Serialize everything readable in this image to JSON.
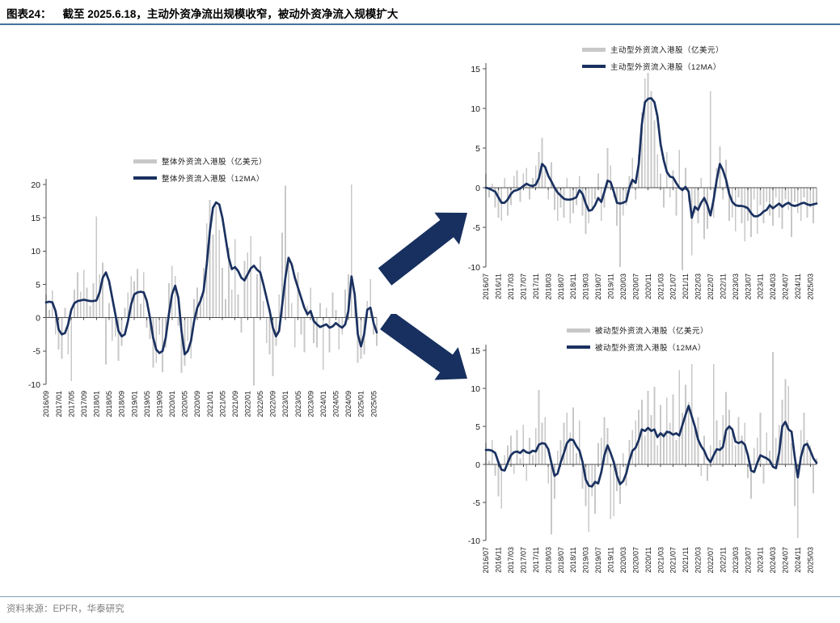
{
  "header": {
    "figure_label": "图表24：",
    "title": "截至 2025.6.18，主动外资净流出规模收窄，被动外资净流入规模扩大"
  },
  "footer": {
    "source": "资料来源：EPFR，华泰研究"
  },
  "colors": {
    "bar": "#c8c8c8",
    "line": "#1a3160",
    "arrow": "#17305f",
    "axis": "#4d4d4d",
    "tick_text": "#1a1a1a",
    "title_rule": "#45729e",
    "footer_rule": "#7da0b8",
    "source_text": "#7f7f7f"
  },
  "chart_data": [
    {
      "type": "bar",
      "overlay": "line",
      "name": "overall-foreign-inflow-hk",
      "legend": {
        "bars": "整体外资流入港股（亿美元）",
        "ma": "整体外资流入港股（12MA）"
      },
      "ylim": [
        -10,
        20
      ],
      "yticks": [
        20,
        15,
        10,
        5,
        0,
        -5,
        -10
      ],
      "label_every": 4,
      "x_labels": [
        "2016/09",
        "2017/01",
        "2017/05",
        "2017/09",
        "2018/01",
        "2018/05",
        "2018/09",
        "2019/01",
        "2019/05",
        "2019/09",
        "2020/01",
        "2020/05",
        "2020/09",
        "2021/01",
        "2021/05",
        "2021/09",
        "2022/01",
        "2022/05",
        "2022/09",
        "2023/01",
        "2023/05",
        "2023/09",
        "2024/01",
        "2024/05",
        "2024/09",
        "2025/01",
        "2025/05"
      ],
      "bars": [
        3.5,
        1.2,
        4.1,
        -2.5,
        -4.8,
        -6.2,
        1.5,
        -5.5,
        -9.5,
        4.2,
        6.8,
        3.9,
        7.2,
        4.5,
        1.8,
        5.2,
        15.2,
        6.5,
        8.3,
        -7.0,
        2.2,
        -3.5,
        -2.8,
        -6.5,
        -4.2,
        1.5,
        3.8,
        6.2,
        5.5,
        7.3,
        2.1,
        6.8,
        -1.5,
        -3.2,
        -7.5,
        -6.8,
        -2.5,
        -8.2,
        -4.5,
        5.2,
        7.8,
        6.3,
        -1.2,
        -8.3,
        -7.2,
        -3.5,
        -6.1,
        2.8,
        4.5,
        3.2,
        7.5,
        14.2,
        17.7,
        12.5,
        16.8,
        13.2,
        7.5,
        2.8,
        10.5,
        4.2,
        11.8,
        3.5,
        -2.2,
        8.5,
        9.8,
        12.2,
        -10.2,
        6.5,
        9.2,
        2.5,
        -3.8,
        -5.5,
        -8.8,
        -4.2,
        3.5,
        12.8,
        19.8,
        8.5,
        2.2,
        -4.5,
        6.8,
        -2.5,
        -5.2,
        1.8,
        4.5,
        -3.8,
        -4.5,
        2.2,
        -7.8,
        1.5,
        -5.2,
        3.8,
        1.2,
        -4.8,
        -2.5,
        4.2,
        6.5,
        20.0,
        3.5,
        -6.8,
        -6.2,
        -5.5,
        2.5,
        5.8,
        -2.5,
        -4.2
      ],
      "ma": [
        2.3,
        2.4,
        2.3,
        1.0,
        -1.8,
        -2.5,
        -2.3,
        -1.0,
        1.2,
        2.2,
        2.5,
        2.6,
        2.7,
        2.6,
        2.5,
        2.5,
        2.6,
        3.8,
        6.0,
        6.8,
        5.5,
        3.0,
        0.5,
        -2.0,
        -2.8,
        -2.5,
        -0.5,
        2.0,
        3.5,
        3.8,
        3.9,
        3.8,
        2.5,
        0.0,
        -3.0,
        -4.8,
        -5.3,
        -5.0,
        -3.0,
        0.5,
        3.5,
        4.8,
        3.0,
        -2.0,
        -5.5,
        -5.0,
        -3.5,
        -0.5,
        1.5,
        2.5,
        4.0,
        8.0,
        13.0,
        16.5,
        17.3,
        17.0,
        15.0,
        12.0,
        9.0,
        7.3,
        7.6,
        7.0,
        6.0,
        5.6,
        6.5,
        7.4,
        7.8,
        7.2,
        6.8,
        5.0,
        3.0,
        1.0,
        -1.5,
        -2.8,
        -2.0,
        2.0,
        6.0,
        9.0,
        8.0,
        6.0,
        4.5,
        3.0,
        1.5,
        0.5,
        1.0,
        -0.5,
        -1.0,
        -1.4,
        -1.2,
        -1.0,
        -1.5,
        -1.3,
        -0.8,
        -1.2,
        -1.5,
        -1.0,
        1.0,
        6.2,
        3.5,
        -2.5,
        -4.3,
        -2.5,
        1.2,
        1.5,
        -0.8,
        -2.2
      ]
    },
    {
      "type": "bar",
      "overlay": "line",
      "name": "active-foreign-inflow-hk",
      "legend": {
        "bars": "主动型外资流入港股（亿美元）",
        "ma": "主动型外资流入港股（12MA）"
      },
      "ylim": [
        -10,
        15
      ],
      "yticks": [
        15,
        10,
        5,
        0,
        -5,
        -10
      ],
      "label_every": 4,
      "x_labels": [
        "2016/07",
        "2016/11",
        "2017/03",
        "2017/07",
        "2017/11",
        "2018/03",
        "2018/07",
        "2018/11",
        "2019/03",
        "2019/07",
        "2019/11",
        "2020/03",
        "2020/07",
        "2020/11",
        "2021/03",
        "2021/07",
        "2021/11",
        "2022/03",
        "2022/07",
        "2022/11",
        "2023/03",
        "2023/07",
        "2023/11",
        "2024/03",
        "2024/07",
        "2024/11",
        "2025/03"
      ],
      "bars": [
        1.8,
        -1.2,
        0.5,
        -2.5,
        -3.8,
        -4.2,
        1.2,
        -3.5,
        -2.2,
        1.5,
        2.2,
        -1.8,
        1.8,
        2.5,
        -1.5,
        1.2,
        2.8,
        4.5,
        6.3,
        2.5,
        -1.5,
        3.2,
        -2.8,
        -4.2,
        -2.5,
        -3.8,
        1.2,
        -4.5,
        -3.2,
        -2.2,
        1.5,
        -3.5,
        -5.8,
        -4.5,
        -2.8,
        -1.5,
        1.8,
        -4.2,
        -2.5,
        5.0,
        2.8,
        -1.2,
        -4.8,
        -10.0,
        -3.5,
        -2.2,
        1.5,
        3.8,
        -1.5,
        4.2,
        9.5,
        13.8,
        14.5,
        12.2,
        8.5,
        4.2,
        1.8,
        -2.5,
        4.5,
        -1.2,
        2.2,
        -3.5,
        4.8,
        -10.4,
        2.5,
        -1.8,
        -8.5,
        -3.2,
        -4.5,
        1.2,
        -6.5,
        -5.2,
        12.2,
        -3.8,
        2.5,
        5.2,
        -1.5,
        3.5,
        -4.2,
        -3.8,
        -5.5,
        -1.2,
        -4.5,
        -6.8,
        -4.2,
        -6.2,
        -1.5,
        -5.8,
        -2.2,
        -4.5,
        -1.8,
        -3.5,
        -4.8,
        -1.2,
        -3.8,
        -5.2,
        -1.5,
        -2.8,
        -6.2,
        -1.8,
        -3.2,
        -4.2,
        -1.2,
        -3.8,
        -2.5,
        -4.5,
        -2.0
      ],
      "ma": [
        0.0,
        -0.1,
        -0.3,
        -0.5,
        -1.2,
        -1.9,
        -1.9,
        -1.5,
        -0.8,
        -0.4,
        -0.3,
        -0.1,
        0.2,
        0.5,
        0.3,
        0.2,
        0.4,
        1.2,
        3.0,
        2.6,
        1.5,
        0.8,
        0.0,
        -0.6,
        -1.0,
        -1.4,
        -1.5,
        -1.5,
        -1.4,
        -1.2,
        -0.3,
        -0.8,
        -2.0,
        -2.9,
        -2.8,
        -2.2,
        -1.3,
        -1.8,
        -0.5,
        0.9,
        0.7,
        -0.5,
        -1.9,
        -2.0,
        -1.9,
        -1.7,
        0.0,
        1.0,
        0.6,
        3.0,
        8.0,
        10.8,
        11.2,
        11.3,
        10.8,
        9.0,
        5.5,
        3.5,
        2.0,
        1.4,
        1.3,
        0.6,
        0.0,
        -0.3,
        0.1,
        -0.5,
        -3.8,
        -2.4,
        -2.8,
        -1.9,
        -1.3,
        -2.2,
        -3.5,
        -1.5,
        1.0,
        3.0,
        2.2,
        1.0,
        -0.8,
        -1.8,
        -2.2,
        -2.3,
        -2.3,
        -2.4,
        -2.6,
        -3.2,
        -3.6,
        -3.6,
        -3.4,
        -3.0,
        -2.8,
        -2.2,
        -2.6,
        -2.3,
        -2.0,
        -2.4,
        -2.1,
        -1.9,
        -2.2,
        -2.3,
        -2.2,
        -2.0,
        -1.9,
        -2.1,
        -2.2,
        -2.1,
        -2.0
      ]
    },
    {
      "type": "bar",
      "overlay": "line",
      "name": "passive-foreign-inflow-hk",
      "legend": {
        "bars": "被动型外资流入港股（亿美元）",
        "ma": "被动型外资流入港股（12MA）"
      },
      "ylim": [
        -10,
        15
      ],
      "yticks": [
        15,
        10,
        5,
        0,
        -5,
        -10
      ],
      "label_every": 4,
      "x_labels": [
        "2016/07",
        "2016/11",
        "2017/03",
        "2017/07",
        "2017/11",
        "2018/03",
        "2018/07",
        "2018/11",
        "2019/03",
        "2019/07",
        "2019/11",
        "2020/03",
        "2020/07",
        "2020/11",
        "2021/03",
        "2021/07",
        "2021/11",
        "2022/03",
        "2022/07",
        "2022/11",
        "2023/03",
        "2023/07",
        "2023/11",
        "2024/03",
        "2024/07",
        "2024/11",
        "2025/03"
      ],
      "bars": [
        2.8,
        0.5,
        3.2,
        -1.5,
        -4.2,
        -5.8,
        1.2,
        2.5,
        3.8,
        -1.2,
        4.5,
        0.8,
        5.2,
        -2.2,
        3.5,
        1.2,
        4.8,
        9.8,
        5.5,
        6.2,
        -2.5,
        -9.2,
        -4.5,
        1.8,
        3.2,
        5.5,
        6.8,
        4.2,
        7.5,
        1.5,
        5.8,
        -3.2,
        -5.5,
        -8.9,
        -4.2,
        -6.5,
        2.8,
        3.5,
        6.2,
        4.8,
        -7.2,
        -6.8,
        -3.5,
        -5.2,
        1.5,
        -2.8,
        3.2,
        4.5,
        5.8,
        7.2,
        8.5,
        3.8,
        9.7,
        6.5,
        10.2,
        2.5,
        7.8,
        4.2,
        8.8,
        5.5,
        9.2,
        3.2,
        12.4,
        6.8,
        10.5,
        8.2,
        13.2,
        4.5,
        6.2,
        -1.5,
        3.8,
        -2.2,
        2.5,
        13.2,
        5.8,
        3.2,
        6.5,
        9.5,
        7.2,
        4.8,
        2.5,
        6.2,
        3.8,
        5.5,
        -1.8,
        -4.5,
        2.2,
        3.5,
        6.8,
        -2.5,
        4.2,
        1.8,
        14.8,
        3.5,
        5.2,
        8.5,
        11.2,
        10.3,
        2.8,
        -5.5,
        -9.7,
        4.5,
        6.8,
        3.2,
        2.5,
        -3.8,
        0.8
      ],
      "ma": [
        1.9,
        1.9,
        1.8,
        1.5,
        0.3,
        -0.7,
        -0.8,
        0.2,
        1.2,
        1.6,
        1.7,
        1.5,
        1.9,
        1.6,
        1.5,
        1.8,
        1.7,
        2.6,
        2.8,
        2.7,
        2.0,
        0.2,
        -1.5,
        -1.2,
        0.3,
        1.5,
        2.8,
        3.3,
        3.2,
        2.4,
        1.8,
        0.3,
        -2.0,
        -2.8,
        -2.9,
        -2.3,
        -2.5,
        -1.0,
        1.2,
        2.5,
        1.5,
        0.3,
        -1.5,
        -2.6,
        -2.2,
        -1.2,
        0.5,
        1.8,
        2.2,
        3.2,
        4.6,
        4.4,
        4.8,
        4.4,
        4.6,
        3.6,
        4.1,
        3.7,
        4.3,
        4.2,
        3.9,
        4.1,
        3.8,
        5.2,
        6.5,
        7.7,
        6.3,
        5.0,
        3.3,
        2.4,
        1.8,
        0.8,
        0.3,
        1.2,
        2.0,
        1.9,
        2.3,
        4.5,
        5.0,
        4.6,
        3.0,
        2.8,
        3.0,
        2.6,
        1.2,
        -0.8,
        -1.0,
        0.2,
        1.2,
        1.0,
        0.8,
        0.5,
        -0.3,
        -0.5,
        1.5,
        5.0,
        5.6,
        4.6,
        4.3,
        1.0,
        -1.7,
        1.0,
        2.5,
        2.7,
        1.8,
        0.8,
        0.2
      ]
    }
  ]
}
